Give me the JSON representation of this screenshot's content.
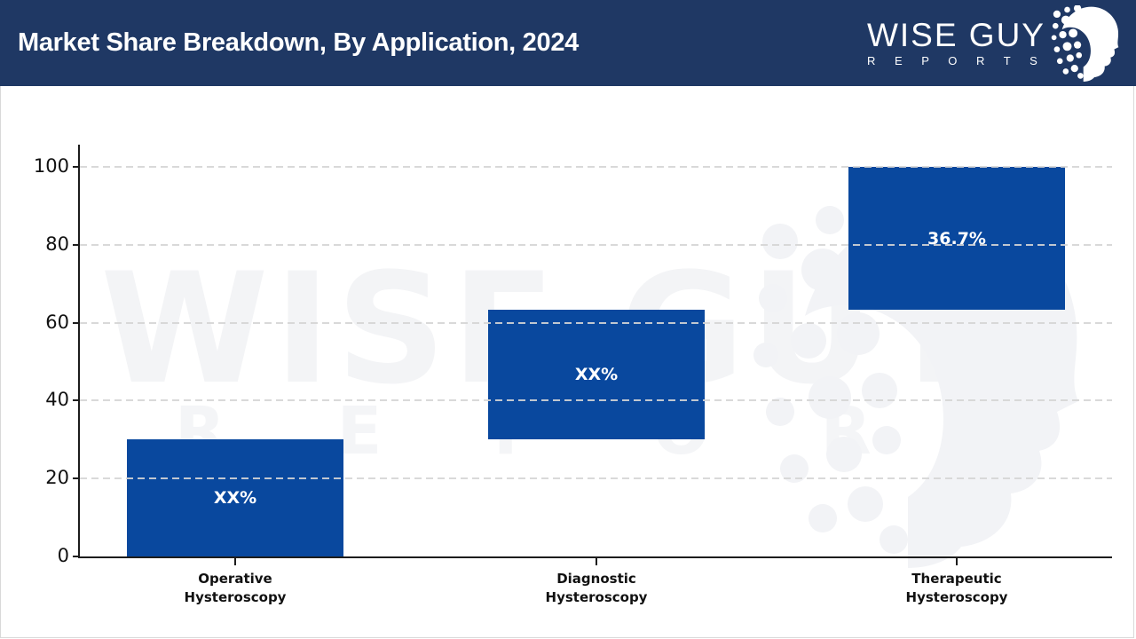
{
  "header": {
    "title": "Market Share Breakdown, By Application, 2024",
    "logo": {
      "wordmark": "WISE GUY",
      "subtext": "R E P O R T S"
    }
  },
  "watermark": {
    "line1": "WISE GUY",
    "line2": "R E P O R T S"
  },
  "colors": {
    "header_background": "#1f3864",
    "bar_blue": "#09489e",
    "axis": "#1c1c1c",
    "gridline": "#d5d5d5",
    "watermark": "#f3f4f6",
    "border": "#d9d9d9"
  },
  "chart_data": {
    "type": "bar",
    "subtype": "waterfall-floating-segments",
    "title": "Market Share Breakdown, By Application, 2024",
    "categories": [
      {
        "line1": "Operative",
        "line2": "Hysteroscopy"
      },
      {
        "line1": "Diagnostic",
        "line2": "Hysteroscopy"
      },
      {
        "line1": "Therapeutic",
        "line2": "Hysteroscopy"
      }
    ],
    "segments": [
      {
        "category": "Operative Hysteroscopy",
        "start": 0,
        "end": 30,
        "value_label": "XX%"
      },
      {
        "category": "Diagnostic Hysteroscopy",
        "start": 30,
        "end": 63.3,
        "value_label": "XX%"
      },
      {
        "category": "Therapeutic Hysteroscopy",
        "start": 63.3,
        "end": 100,
        "value_label": "36.7%"
      }
    ],
    "ylim": [
      0,
      100
    ],
    "yticks": [
      0,
      20,
      40,
      60,
      80,
      100
    ],
    "xlabel": "",
    "ylabel": "",
    "grid": "horizontal-dashed",
    "legend": "none",
    "bar_color": "#09489e",
    "value_label_color": "#ffffff"
  }
}
